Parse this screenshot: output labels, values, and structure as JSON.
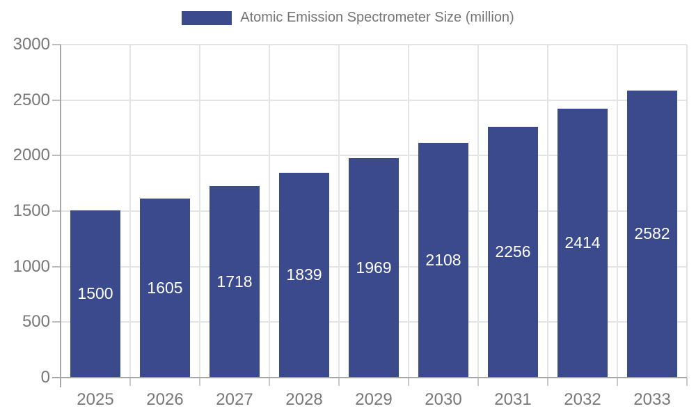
{
  "legend": {
    "label": "Atomic Emission Spectrometer Size (million)"
  },
  "chart_data": {
    "type": "bar",
    "title": "Atomic Emission Spectrometer Size (million)",
    "categories": [
      "2025",
      "2026",
      "2027",
      "2028",
      "2029",
      "2030",
      "2031",
      "2032",
      "2033"
    ],
    "values": [
      1500,
      1605,
      1718,
      1839,
      1969,
      2108,
      2256,
      2414,
      2582
    ],
    "xlabel": "",
    "ylabel": "",
    "ylim": [
      0,
      3000
    ],
    "yticks": [
      0,
      500,
      1000,
      1500,
      2000,
      2500,
      3000
    ],
    "grid": true,
    "legend_position": "top",
    "bar_color": "#3A4A8C",
    "value_label_color": "#FFFFFF",
    "axis_label_color": "#787878",
    "grid_color": "#E4E4E4",
    "axis_line_color": "#A6A6A6"
  }
}
